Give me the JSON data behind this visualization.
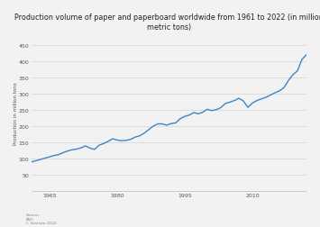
{
  "title": "Production volume of paper and paperboard worldwide from 1961 to 2022 (in million\nmetric tons)",
  "ylabel": "Production in million tons",
  "source_text": "Source:\nFAO\n© Statista 2024",
  "line_color": "#3d85c8",
  "background_color": "#f2f2f2",
  "plot_bg_color": "#f2f2f2",
  "ylim": [
    0,
    480
  ],
  "yticks": [
    50,
    100,
    150,
    200,
    250,
    300,
    350,
    400,
    450
  ],
  "xlim_start": 1961,
  "xlim_end": 2022,
  "years": [
    1961,
    1962,
    1963,
    1964,
    1965,
    1966,
    1967,
    1968,
    1969,
    1970,
    1971,
    1972,
    1973,
    1974,
    1975,
    1976,
    1977,
    1978,
    1979,
    1980,
    1981,
    1982,
    1983,
    1984,
    1985,
    1986,
    1987,
    1988,
    1989,
    1990,
    1991,
    1992,
    1993,
    1994,
    1995,
    1996,
    1997,
    1998,
    1999,
    2000,
    2001,
    2002,
    2003,
    2004,
    2005,
    2006,
    2007,
    2008,
    2009,
    2010,
    2011,
    2012,
    2013,
    2014,
    2015,
    2016,
    2017,
    2018,
    2019,
    2020,
    2021,
    2022
  ],
  "values": [
    88,
    92,
    96,
    100,
    104,
    108,
    111,
    117,
    122,
    126,
    128,
    132,
    138,
    131,
    127,
    140,
    145,
    152,
    160,
    156,
    154,
    155,
    158,
    165,
    169,
    177,
    188,
    199,
    206,
    206,
    202,
    207,
    209,
    222,
    229,
    233,
    241,
    237,
    242,
    251,
    247,
    250,
    256,
    269,
    273,
    278,
    285,
    277,
    257,
    270,
    278,
    283,
    288,
    295,
    302,
    308,
    318,
    340,
    358,
    370,
    405,
    420
  ]
}
